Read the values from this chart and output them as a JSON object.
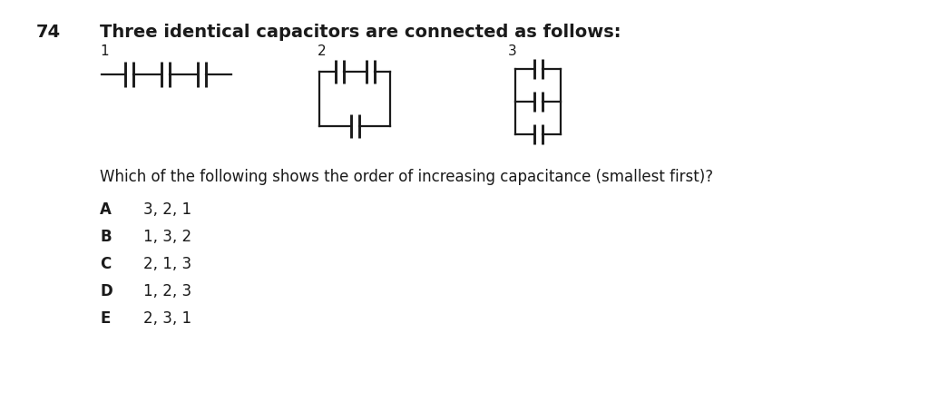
{
  "title_number": "74",
  "title_text": "Three identical capacitors are connected as follows:",
  "question_text": "Which of the following shows the order of increasing capacitance (smallest first)?",
  "options": [
    {
      "label": "A",
      "text": "3, 2, 1"
    },
    {
      "label": "B",
      "text": "1, 3, 2"
    },
    {
      "label": "C",
      "text": "2, 1, 3"
    },
    {
      "label": "D",
      "text": "1, 2, 3"
    },
    {
      "label": "E",
      "text": "2, 3, 1"
    }
  ],
  "bg_color": "#ffffff",
  "text_color": "#1a1a1a",
  "line_color": "#1a1a1a",
  "font_size_title": 14,
  "font_size_question": 12,
  "font_size_options": 12,
  "font_size_diagram_label": 11
}
